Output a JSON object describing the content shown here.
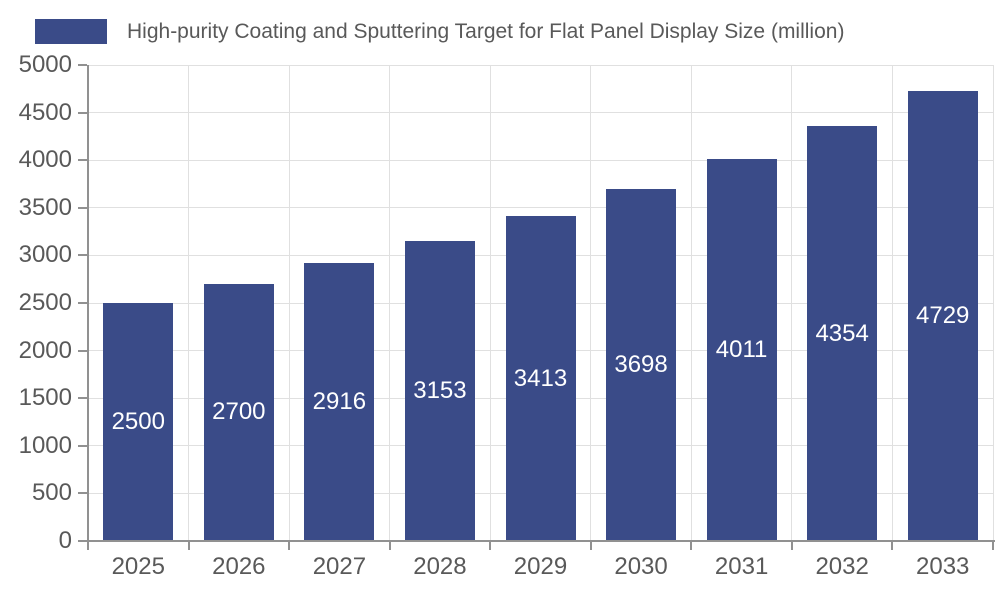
{
  "chart_data": {
    "type": "bar",
    "title": "High-purity Coating and Sputtering Target for Flat Panel Display Size (million)",
    "categories": [
      "2025",
      "2026",
      "2027",
      "2028",
      "2029",
      "2030",
      "2031",
      "2032",
      "2033"
    ],
    "values": [
      2500,
      2700,
      2916,
      3153,
      3413,
      3698,
      4011,
      4354,
      4729
    ],
    "series_name": "High-purity Coating and Sputtering Target for Flat Panel Display Size (million)",
    "xlabel": "",
    "ylabel": "",
    "ylim": [
      0,
      5000
    ],
    "yticks": [
      0,
      500,
      1000,
      1500,
      2000,
      2500,
      3000,
      3500,
      4000,
      4500,
      5000
    ],
    "grid": true,
    "legend_position": "top-left",
    "bar_color": "#3a4b88",
    "value_label_color": "#ffffff",
    "axis_text_color": "#595959",
    "grid_color": "#e0e0e0",
    "axis_line_color": "#919191"
  }
}
